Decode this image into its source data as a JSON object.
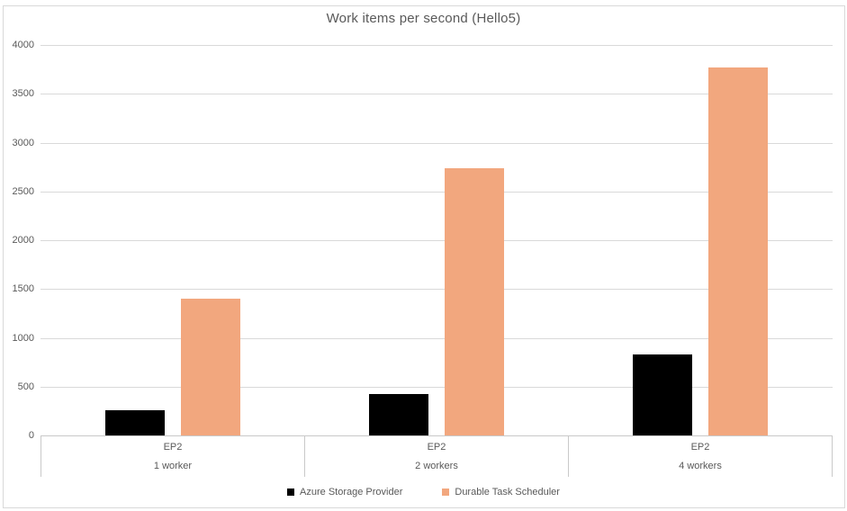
{
  "window": {
    "background": "#ffffff",
    "border_color": "#d9d9d9"
  },
  "chart_data": {
    "type": "bar",
    "title": "Work items per second (Hello5)",
    "categories": [
      {
        "instance": "EP2",
        "workers": "1 worker"
      },
      {
        "instance": "EP2",
        "workers": "2 workers"
      },
      {
        "instance": "EP2",
        "workers": "4 workers"
      }
    ],
    "series": [
      {
        "name": "Azure Storage Provider",
        "color": "#000000",
        "values": [
          260,
          420,
          830
        ]
      },
      {
        "name": "Durable Task Scheduler",
        "color": "#F2A77E",
        "values": [
          1400,
          2740,
          3770
        ]
      }
    ],
    "ylim": [
      0,
      4000
    ],
    "yticks": [
      0,
      500,
      1000,
      1500,
      2000,
      2500,
      3000,
      3500,
      4000
    ],
    "xlabel": "",
    "ylabel": "",
    "grid": true,
    "legend_position": "bottom",
    "text_color": "#595959",
    "gridline_color": "#d9d9d9",
    "axis_line_color": "#c9c9c9"
  }
}
